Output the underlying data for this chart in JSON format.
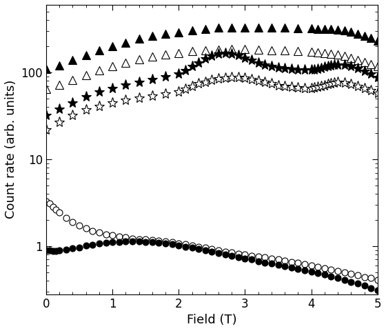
{
  "xlabel": "Field (T)",
  "ylabel": "Count rate (arb. units)",
  "xlim": [
    0,
    5
  ],
  "ylim_log": [
    0.28,
    600
  ],
  "series": {
    "filled_triangle": {
      "x": [
        0.0,
        0.2,
        0.4,
        0.6,
        0.8,
        1.0,
        1.2,
        1.4,
        1.6,
        1.8,
        2.0,
        2.2,
        2.4,
        2.6,
        2.8,
        3.0,
        3.2,
        3.4,
        3.6,
        3.8,
        4.0,
        4.1,
        4.2,
        4.3,
        4.4,
        4.5,
        4.6,
        4.7,
        4.8,
        4.9,
        5.0
      ],
      "y": [
        110,
        120,
        140,
        158,
        180,
        200,
        220,
        245,
        262,
        278,
        290,
        305,
        315,
        325,
        328,
        330,
        330,
        328,
        325,
        322,
        320,
        318,
        316,
        315,
        310,
        305,
        295,
        280,
        265,
        248,
        230
      ],
      "marker": "^",
      "filled": true,
      "markersize": 9
    },
    "open_triangle": {
      "x": [
        0.0,
        0.2,
        0.4,
        0.6,
        0.8,
        1.0,
        1.2,
        1.4,
        1.6,
        1.8,
        2.0,
        2.2,
        2.4,
        2.6,
        2.8,
        3.0,
        3.2,
        3.4,
        3.6,
        3.8,
        4.0,
        4.1,
        4.2,
        4.3,
        4.4,
        4.5,
        4.6,
        4.7,
        4.8,
        4.9,
        5.0
      ],
      "y": [
        65,
        72,
        82,
        93,
        105,
        117,
        130,
        142,
        152,
        160,
        168,
        175,
        180,
        183,
        185,
        185,
        183,
        180,
        178,
        175,
        172,
        170,
        168,
        165,
        160,
        155,
        148,
        140,
        132,
        125,
        118
      ],
      "marker": "^",
      "filled": false,
      "markersize": 9
    },
    "filled_star": {
      "x": [
        0.0,
        0.2,
        0.4,
        0.6,
        0.8,
        1.0,
        1.2,
        1.4,
        1.6,
        1.8,
        2.0,
        2.1,
        2.2,
        2.3,
        2.4,
        2.5,
        2.6,
        2.7,
        2.8,
        2.9,
        3.0,
        3.1,
        3.2,
        3.3,
        3.4,
        3.5,
        3.6,
        3.7,
        3.8,
        3.9,
        4.0,
        4.05,
        4.1,
        4.15,
        4.2,
        4.25,
        4.3,
        4.35,
        4.4,
        4.5,
        4.6,
        4.7,
        4.8,
        4.9,
        5.0
      ],
      "y": [
        32,
        38,
        45,
        53,
        60,
        66,
        72,
        78,
        84,
        90,
        97,
        105,
        118,
        130,
        143,
        155,
        163,
        168,
        165,
        158,
        148,
        138,
        130,
        123,
        118,
        114,
        112,
        110,
        108,
        107,
        107,
        108,
        110,
        112,
        115,
        118,
        120,
        122,
        123,
        122,
        118,
        112,
        104,
        96,
        88
      ],
      "marker": "*",
      "filled": true,
      "markersize": 11
    },
    "open_star": {
      "x": [
        0.0,
        0.2,
        0.4,
        0.6,
        0.8,
        1.0,
        1.2,
        1.4,
        1.6,
        1.8,
        2.0,
        2.1,
        2.2,
        2.3,
        2.4,
        2.5,
        2.6,
        2.7,
        2.8,
        2.9,
        3.0,
        3.1,
        3.2,
        3.3,
        3.4,
        3.5,
        3.6,
        3.7,
        3.8,
        3.9,
        4.0,
        4.05,
        4.1,
        4.15,
        4.2,
        4.25,
        4.3,
        4.35,
        4.4,
        4.5,
        4.6,
        4.7,
        4.8,
        4.9,
        5.0
      ],
      "y": [
        22,
        27,
        32,
        37,
        41,
        45,
        48,
        51,
        54,
        57,
        60,
        64,
        69,
        74,
        78,
        82,
        85,
        87,
        88,
        88,
        86,
        83,
        80,
        77,
        74,
        71,
        69,
        68,
        67,
        66,
        66,
        67,
        68,
        69,
        71,
        73,
        74,
        76,
        77,
        76,
        73,
        70,
        66,
        62,
        58
      ],
      "marker": "*",
      "filled": false,
      "markersize": 11
    },
    "open_circle": {
      "x": [
        0.0,
        0.05,
        0.1,
        0.15,
        0.2,
        0.3,
        0.4,
        0.5,
        0.6,
        0.7,
        0.8,
        0.9,
        1.0,
        1.1,
        1.2,
        1.3,
        1.4,
        1.5,
        1.6,
        1.7,
        1.8,
        1.9,
        2.0,
        2.1,
        2.2,
        2.3,
        2.4,
        2.5,
        2.6,
        2.7,
        2.8,
        2.9,
        3.0,
        3.1,
        3.2,
        3.3,
        3.4,
        3.5,
        3.6,
        3.7,
        3.8,
        3.9,
        4.0,
        4.1,
        4.2,
        4.3,
        4.4,
        4.5,
        4.6,
        4.7,
        4.8,
        4.9,
        5.0
      ],
      "y": [
        3.3,
        3.1,
        2.85,
        2.65,
        2.45,
        2.1,
        1.88,
        1.72,
        1.6,
        1.5,
        1.43,
        1.37,
        1.33,
        1.29,
        1.26,
        1.23,
        1.21,
        1.19,
        1.17,
        1.15,
        1.13,
        1.11,
        1.08,
        1.05,
        1.02,
        0.99,
        0.96,
        0.93,
        0.9,
        0.87,
        0.85,
        0.82,
        0.8,
        0.78,
        0.76,
        0.74,
        0.72,
        0.7,
        0.68,
        0.66,
        0.64,
        0.62,
        0.6,
        0.58,
        0.56,
        0.54,
        0.52,
        0.5,
        0.48,
        0.46,
        0.44,
        0.43,
        0.41
      ],
      "marker": "o",
      "filled": false,
      "markersize": 6.5
    },
    "filled_circle": {
      "x": [
        0.0,
        0.05,
        0.1,
        0.15,
        0.2,
        0.3,
        0.4,
        0.5,
        0.6,
        0.7,
        0.8,
        0.9,
        1.0,
        1.1,
        1.2,
        1.3,
        1.4,
        1.5,
        1.6,
        1.7,
        1.8,
        1.9,
        2.0,
        2.1,
        2.2,
        2.3,
        2.4,
        2.5,
        2.6,
        2.7,
        2.8,
        2.9,
        3.0,
        3.1,
        3.2,
        3.3,
        3.4,
        3.5,
        3.6,
        3.7,
        3.8,
        3.9,
        4.0,
        4.1,
        4.2,
        4.3,
        4.4,
        4.5,
        4.6,
        4.7,
        4.8,
        4.9,
        5.0
      ],
      "y": [
        0.9,
        0.89,
        0.88,
        0.88,
        0.89,
        0.91,
        0.94,
        0.97,
        1.01,
        1.04,
        1.07,
        1.09,
        1.11,
        1.12,
        1.13,
        1.13,
        1.13,
        1.12,
        1.11,
        1.09,
        1.07,
        1.05,
        1.02,
        0.99,
        0.96,
        0.93,
        0.9,
        0.87,
        0.84,
        0.81,
        0.78,
        0.75,
        0.72,
        0.7,
        0.67,
        0.65,
        0.63,
        0.61,
        0.59,
        0.57,
        0.55,
        0.53,
        0.51,
        0.49,
        0.47,
        0.45,
        0.43,
        0.41,
        0.39,
        0.37,
        0.35,
        0.33,
        0.31
      ],
      "marker": "o",
      "filled": true,
      "markersize": 6.5
    }
  }
}
